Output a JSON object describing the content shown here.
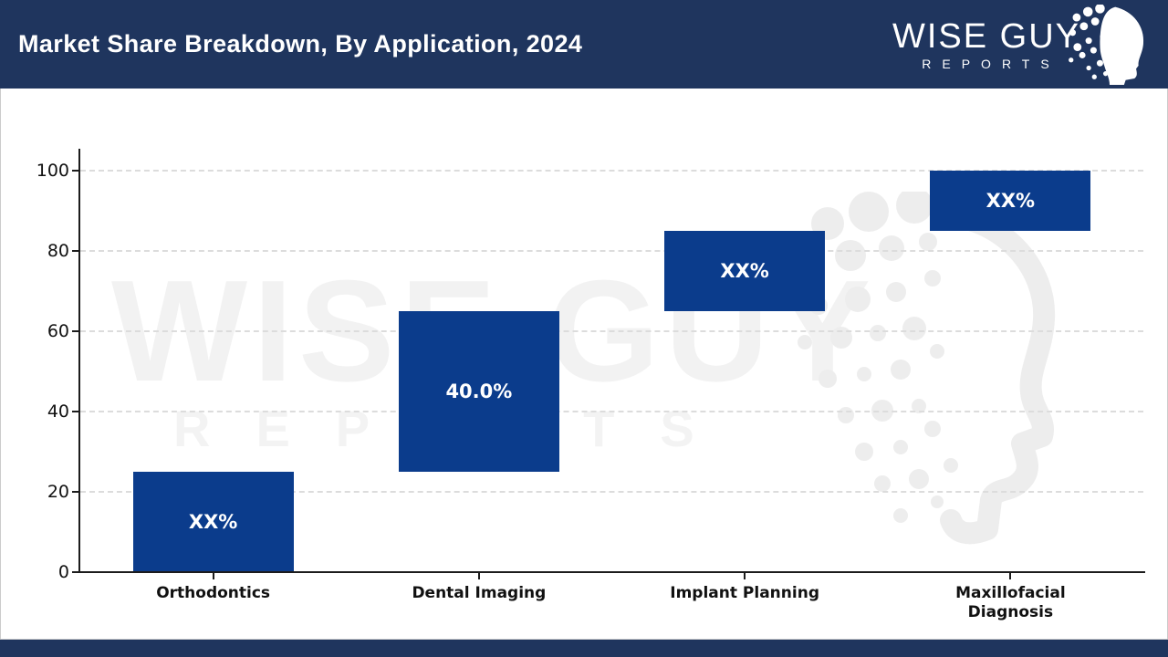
{
  "chart_data": {
    "type": "bar",
    "subtype": "floating-waterfall",
    "title": "Market Share Breakdown, By Application, 2024",
    "categories": [
      "Orthodontics",
      "Dental Imaging",
      "Implant Planning",
      "Maxillofacial Diagnosis"
    ],
    "segments": [
      {
        "category": "Orthodontics",
        "start": 0,
        "end": 25,
        "label": "XX%"
      },
      {
        "category": "Dental Imaging",
        "start": 25,
        "end": 65,
        "label": "40.0%"
      },
      {
        "category": "Implant Planning",
        "start": 65,
        "end": 85,
        "label": "XX%"
      },
      {
        "category": "Maxillofacial Diagnosis",
        "start": 85,
        "end": 100,
        "label": "XX%"
      }
    ],
    "y_ticks": [
      0,
      20,
      40,
      60,
      80,
      100
    ],
    "ylim": [
      0,
      105
    ],
    "xlabel": "",
    "ylabel": "",
    "grid": "horizontal-dashed",
    "legend": "none",
    "bar_color": "#0b3c8c",
    "value_label_color": "#ffffff"
  },
  "header": {
    "bg_color": "#1f355e",
    "logo": {
      "line1": "WISE GUY",
      "line2": "REPORTS"
    }
  },
  "watermark": {
    "line1": "WISE GUY",
    "line2": "REPORTS"
  }
}
